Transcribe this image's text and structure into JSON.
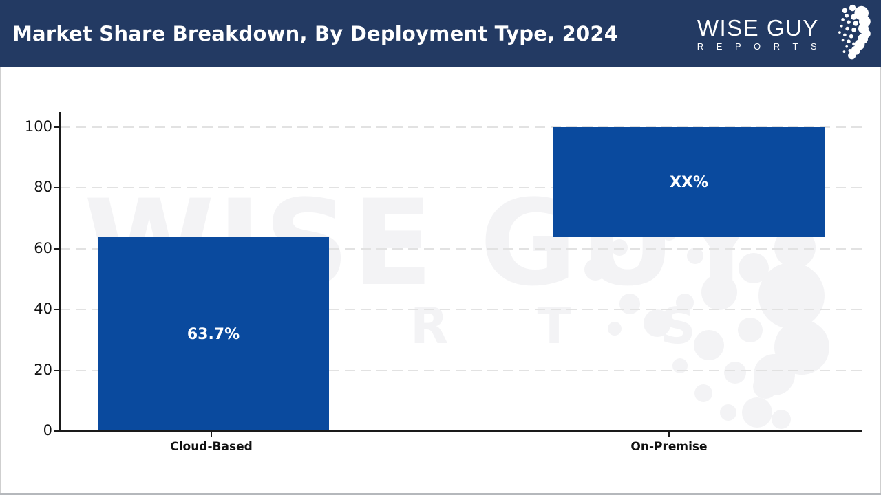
{
  "page": {
    "background": "#ffffff",
    "frame_color": "#cfcfcf"
  },
  "header": {
    "background": "#233a63",
    "title": "Market Share Breakdown, By Deployment Type, 2024",
    "logo": {
      "line1": "WISE GUY",
      "line2": "R E P O R T S"
    }
  },
  "watermark": {
    "line1": "WISE GUY",
    "line2": "R T S"
  },
  "chart_data": {
    "type": "bar",
    "title": "Market Share Breakdown, By Deployment Type, 2024",
    "categories": [
      "Cloud-Based",
      "On-Premise"
    ],
    "bars": [
      {
        "category": "Cloud-Based",
        "range": [
          0,
          63.7
        ],
        "label": "63.7%"
      },
      {
        "category": "On-Premise",
        "range": [
          63.7,
          100
        ],
        "label": "XX%"
      }
    ],
    "ylim": [
      0,
      100
    ],
    "yticks": [
      0,
      20,
      40,
      60,
      80,
      100
    ],
    "grid": "horizontal dashed",
    "bar_color": "#0a4a9e",
    "value_label_color": "#ffffff",
    "axis_color": "#1a1a1a",
    "gridline_color": "#e2e2e2",
    "legend": "none"
  }
}
